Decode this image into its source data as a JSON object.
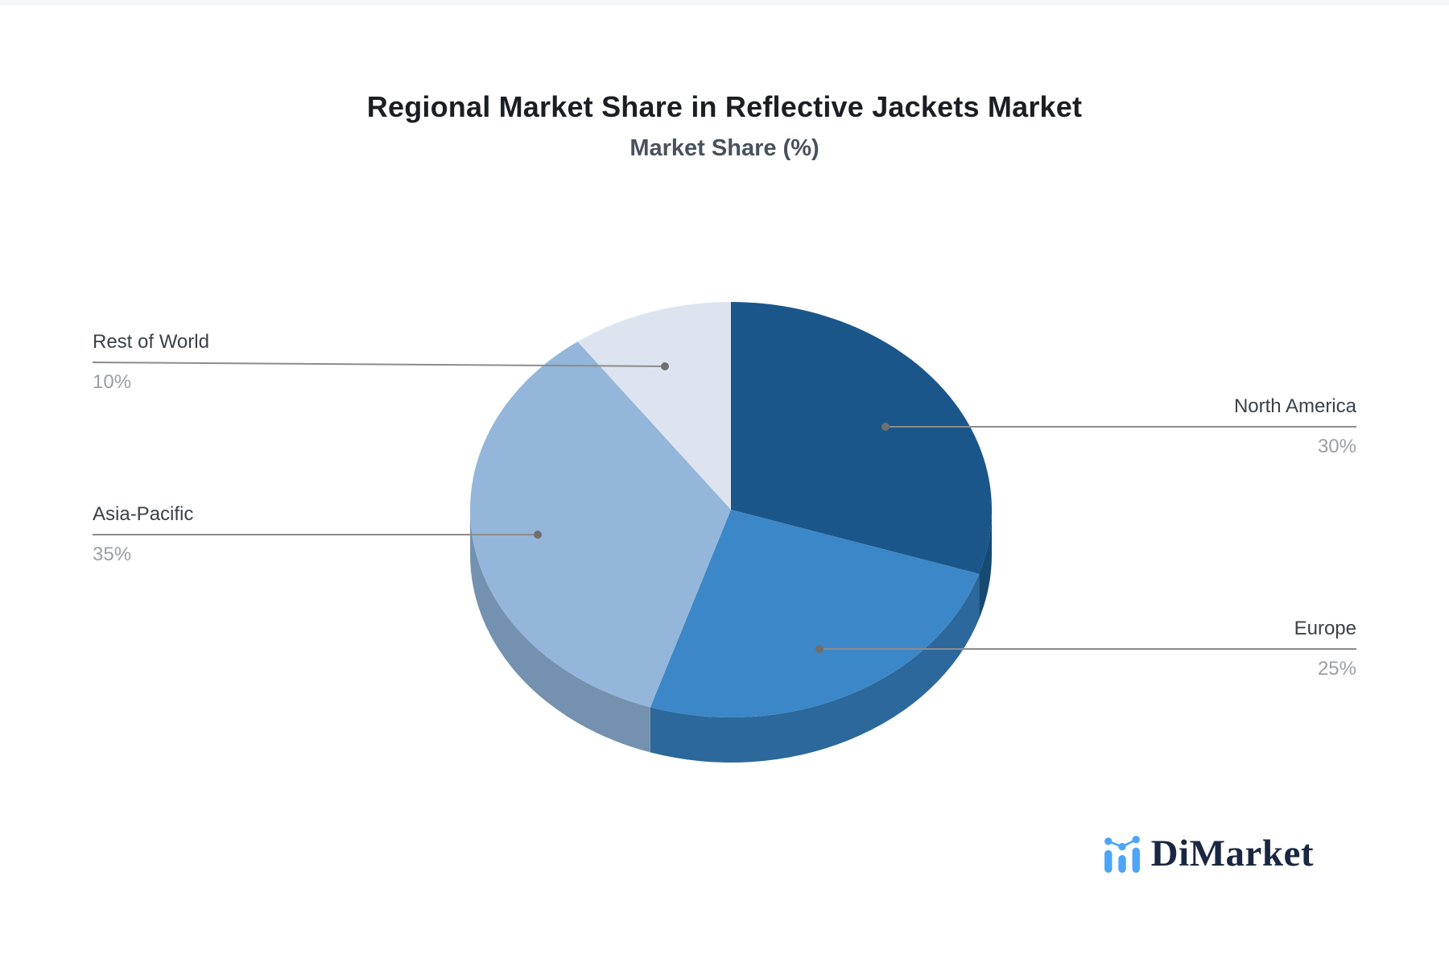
{
  "header": {
    "title": "Regional Market Share in Reflective Jackets Market",
    "subtitle": "Market Share (%)"
  },
  "chart_data": {
    "type": "pie",
    "style": "3d-pie",
    "title": "Regional Market Share in Reflective Jackets Market",
    "subtitle": "Market Share (%)",
    "unit": "%",
    "rotation": "clockwise-from-top",
    "legend_position": "callout-labels",
    "slices": [
      {
        "label": "North America",
        "value": 30,
        "display": "30%",
        "color": "#1A568A",
        "side_color": "#164A72",
        "label_side": "right"
      },
      {
        "label": "Europe",
        "value": 25,
        "display": "25%",
        "color": "#3C87C8",
        "side_color": "#2C689B",
        "label_side": "right"
      },
      {
        "label": "Asia-Pacific",
        "value": 35,
        "display": "35%",
        "color": "#94B6DA",
        "side_color": "#7492AF",
        "label_side": "left"
      },
      {
        "label": "Rest of World",
        "value": 10,
        "display": "10%",
        "color": "#DDE4EF",
        "side_color": "#B9C3D2",
        "label_side": "left"
      }
    ],
    "colors": {
      "leader_line": "#8c8c8c",
      "leader_dot": "#6f6f6f",
      "label_text": "#3a4148",
      "value_text": "#9b9fa3",
      "title_text": "#1b1e23",
      "subtitle_text": "#49525c"
    }
  },
  "branding": {
    "logo_text": "DiMarket",
    "logo_text_color": "#1a2742",
    "logo_icon": "bar-line-chart-icon",
    "logo_icon_color": "#4da5f7"
  }
}
